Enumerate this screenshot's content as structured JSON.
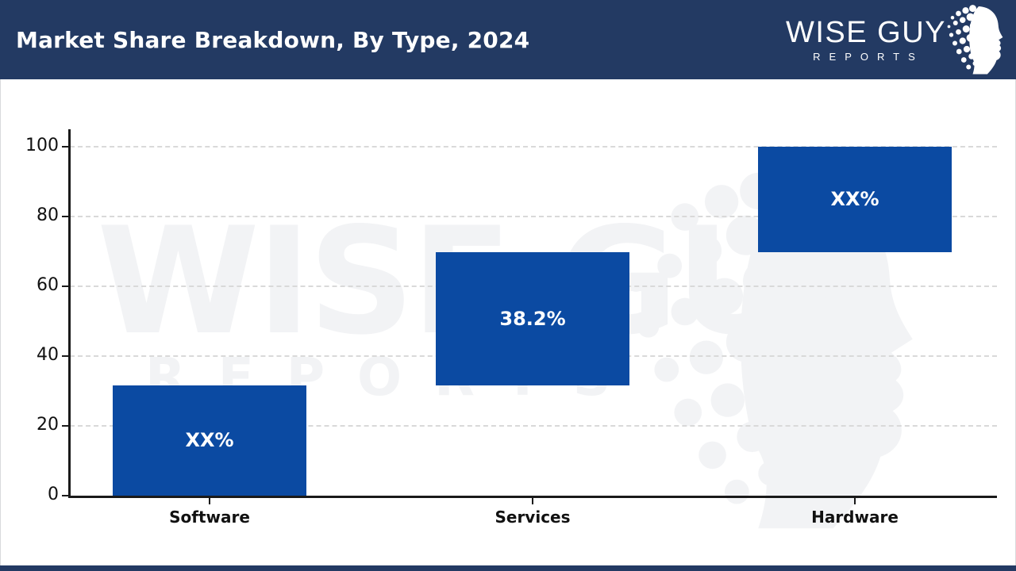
{
  "header": {
    "title": "Market Share Breakdown, By Type, 2024",
    "logo": {
      "wordmark": "WISE GUY",
      "subtext": "REPORTS"
    }
  },
  "watermark": {
    "line1": "WISE GUY",
    "line2": "REPORTS"
  },
  "chart_data": {
    "type": "bar",
    "variant": "floating-segment-waterfall",
    "title": "Market Share Breakdown, By Type, 2024",
    "categories": [
      "Software",
      "Services",
      "Hardware"
    ],
    "segments": [
      {
        "category": "Software",
        "start": 0,
        "end": 31.6,
        "label": "XX%"
      },
      {
        "category": "Services",
        "start": 31.6,
        "end": 69.8,
        "label": "38.2%"
      },
      {
        "category": "Hardware",
        "start": 69.8,
        "end": 100,
        "label": "XX%"
      }
    ],
    "xlabel": "",
    "ylabel": "",
    "yticks": [
      0,
      20,
      40,
      60,
      80,
      100
    ],
    "ylim": [
      0,
      105
    ],
    "grid": "horizontal-dashed",
    "legend": null
  },
  "colors": {
    "header_bg": "#233A63",
    "footer_bg": "#233A63",
    "bar": "#0B4AA2",
    "bar_label": "#FFFFFF",
    "grid": "#D9D9D9",
    "axis": "#1A1A1A",
    "watermark": "#F2F3F5"
  }
}
